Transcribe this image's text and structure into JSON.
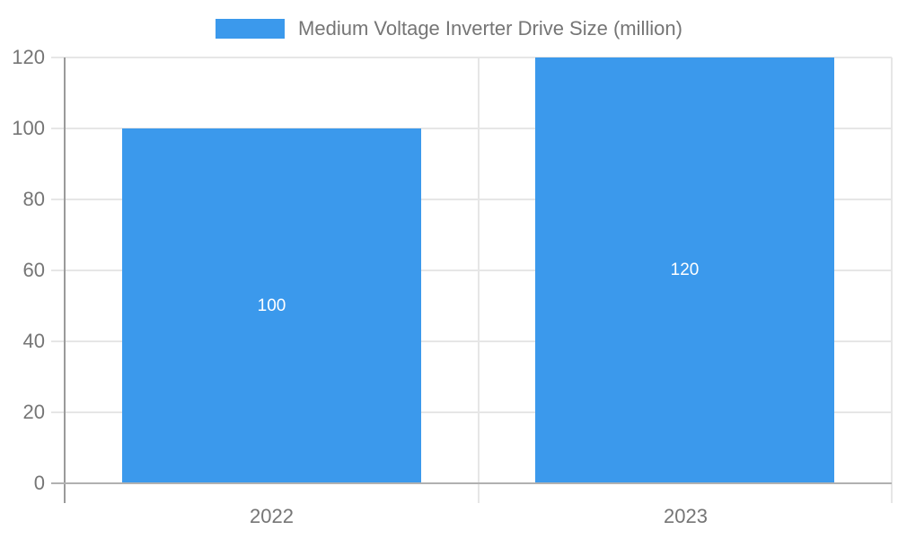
{
  "chart_data": {
    "type": "bar",
    "legend": "Medium Voltage Inverter Drive Size (million)",
    "legend_position": "top",
    "categories": [
      "2022",
      "2023"
    ],
    "values": [
      100,
      120
    ],
    "data_labels": [
      "100",
      "120"
    ],
    "yticks": [
      0,
      20,
      40,
      60,
      80,
      100,
      120
    ],
    "ylim": [
      0,
      120
    ],
    "grid": true,
    "colors": {
      "bar": "#3B99EC",
      "label": "#757575",
      "gridline": "#e6e6e6",
      "x_axis_line": "#b1b1b1",
      "y_axis_line": "#9a9a9a",
      "data_label": "#ffffff",
      "background": "#ffffff"
    }
  }
}
